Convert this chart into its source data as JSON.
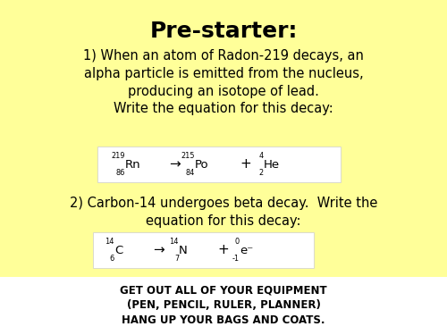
{
  "bg_color": "#FFFF99",
  "footer_bg": "#ffffff",
  "title": "Pre-starter:",
  "title_fontsize": 18,
  "title_bold": true,
  "q1_text": "1) When an atom of Radon-219 decays, an\nalpha particle is emitted from the nucleus,\nproducing an isotope of lead.\nWrite the equation for this decay:",
  "q1_fontsize": 10.5,
  "q2_text": "2) Carbon-14 undergoes beta decay.  Write the\nequation for this decay:",
  "q2_fontsize": 10.5,
  "footer_line1": "GET OUT ALL OF YOUR EQUIPMENT",
  "footer_line2": "(PEN, PENCIL, RULER, PLANNER)",
  "footer_line3": "HANG UP YOUR BAGS AND COATS.",
  "footer_fontsize": 8.5,
  "eq1_box_color": "#ffffff",
  "eq2_box_color": "#ffffff"
}
